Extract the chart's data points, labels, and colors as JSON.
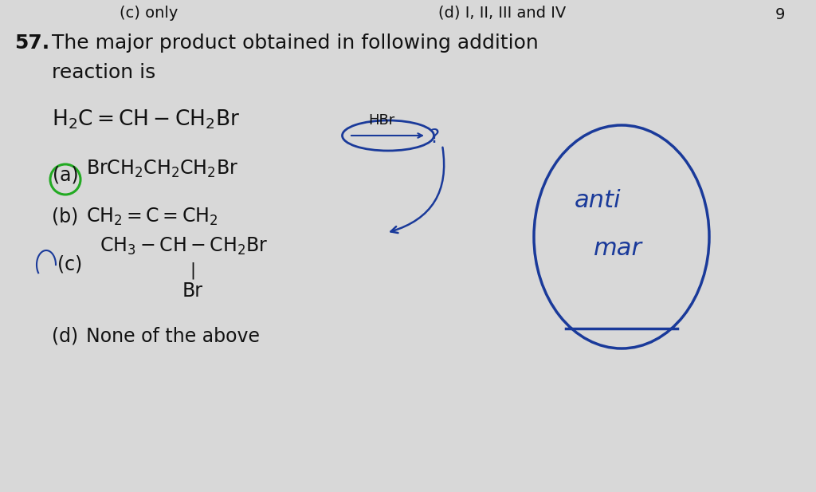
{
  "background_color": "#d8d8d8",
  "question_number": "57.",
  "question_text": "The major product obtained in following addition\nreaction is",
  "reaction_line1": "H₂C = CH – CH₂Br",
  "reagent": "HBr",
  "option_a_label": "(a)",
  "option_a_text": "BrCH₂CH₂CH₂Br",
  "option_b_label": "(b)",
  "option_b_text": "CH₂=C=CH₂",
  "option_c_label": "(c)",
  "option_c_formula_top": "CH₃–CH–CH₂Br",
  "option_c_br": "Br",
  "option_d_label": "(d)",
  "option_d_text": "None of the above",
  "text_color": "#111111",
  "green_circle_color": "#22aa22",
  "blue_annotation_color": "#1a3a9a",
  "blue_circle_color": "#1a3a9a",
  "font_size_main": 18,
  "font_size_option": 17,
  "font_size_reagent": 13
}
